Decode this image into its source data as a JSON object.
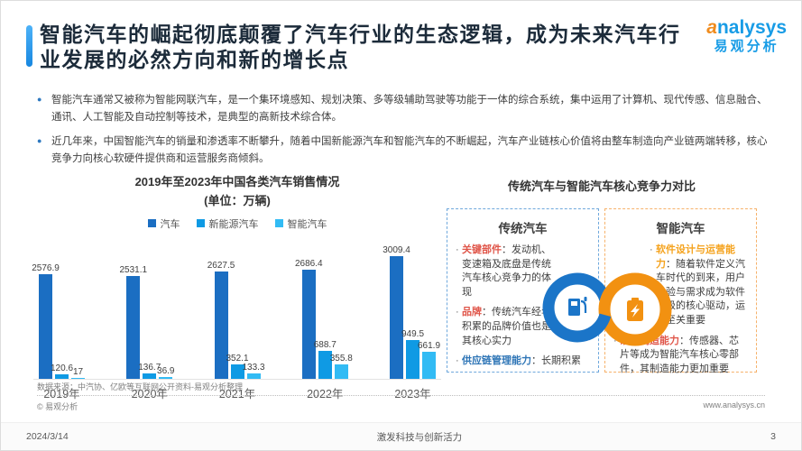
{
  "header": {
    "title": "智能汽车的崛起彻底颠覆了汽车行业的生态逻辑，成为未来汽车行业发展的必然方向和新的增长点",
    "logo_word": "analysys",
    "logo_sub": "易观分析"
  },
  "bullets": [
    "智能汽车通常又被称为智能网联汽车，是一个集环境感知、规划决策、多等级辅助驾驶等功能于一体的综合系统，集中运用了计算机、现代传感、信息融合、通讯、人工智能及自动控制等技术，是典型的高新技术综合体。",
    "近几年来，中国智能汽车的销量和渗透率不断攀升，随着中国新能源汽车和智能汽车的不断崛起，汽车产业链核心价值将由整车制造向产业链两端转移，核心竞争力向核心软硬件提供商和运营服务商倾斜。"
  ],
  "chart_data": {
    "type": "bar",
    "title": "2019年至2023年中国各类汽车销售情况",
    "subtitle": "(单位：万辆)",
    "categories": [
      "2019年",
      "2020年",
      "2021年",
      "2022年",
      "2023年"
    ],
    "series": [
      {
        "name": "汽车",
        "color": "#1b6ec2",
        "values": [
          2576.9,
          2531.1,
          2627.5,
          2686.4,
          3009.4
        ]
      },
      {
        "name": "新能源汽车",
        "color": "#0f9ae4",
        "values": [
          120.6,
          136.7,
          352.1,
          688.7,
          949.5
        ]
      },
      {
        "name": "智能汽车",
        "color": "#32bbf4",
        "values": [
          17,
          36.9,
          133.3,
          355.8,
          661.9
        ]
      }
    ],
    "ylabel": "万辆",
    "ylim": [
      0,
      3100
    ],
    "grid": false,
    "legend_position": "top"
  },
  "comparison": {
    "title": "传统汽车与智能汽车核心竞争力对比",
    "left": {
      "header": "传统汽车",
      "items": [
        {
          "keyword": "关键部件",
          "text": "：发动机、变速箱及底盘是传统汽车核心竞争力的体现",
          "color": "#e0564a"
        },
        {
          "keyword": "品牌",
          "text": "：传统汽车经年积累的品牌价值也是其核心实力",
          "color": "#e0564a"
        },
        {
          "keyword": "供应链管理能力",
          "text": "：长期积累",
          "color": "#2e75b6"
        }
      ]
    },
    "right": {
      "header": "智能汽车",
      "items": [
        {
          "keyword": "软件设计与运营能力",
          "text": "：随着软件定义汽车时代的到来，用户体验与需求成为软件升级的核心驱动，运营至关重要",
          "color": "#f5a31e"
        },
        {
          "keyword": "硬件制造能力",
          "text": "：传感器、芯片等成为智能汽车核心零部件，其制造能力更加重要",
          "color": "#e0564a"
        }
      ]
    },
    "icons": {
      "left_ring_color": "#1b75c8",
      "right_ring_color": "#f29111",
      "left_icon": "fuel-pump",
      "right_icon": "battery-charging"
    }
  },
  "source_note": "数据来源：中汽协、亿欧等互联网公开资料-易观分析整理",
  "copyright": "© 易观分析",
  "website": "www.analysys.cn",
  "footer": {
    "date": "2024/3/14",
    "slogan": "激发科技与创新活力",
    "page": "3"
  },
  "palette": {
    "accent_blue": "#2d9bef",
    "logo_blue": "#189ce6",
    "logo_orange": "#f08c1e"
  }
}
